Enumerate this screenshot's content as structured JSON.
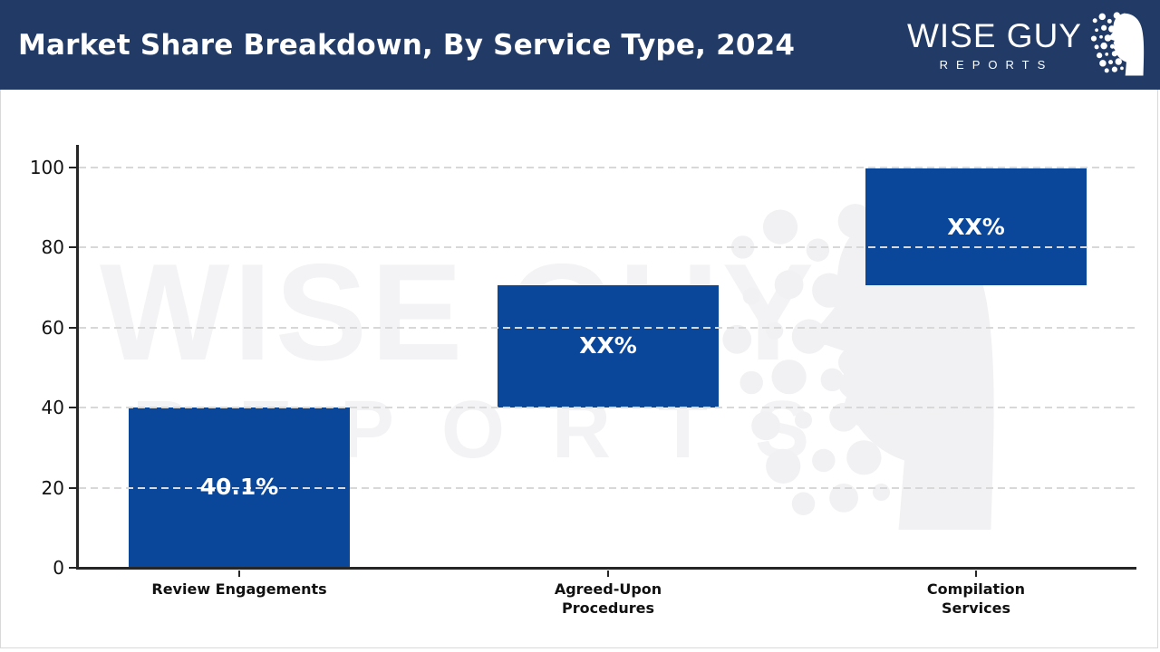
{
  "header": {
    "title": "Market Share Breakdown, By Service Type, 2024",
    "background_color": "#213a66",
    "logo": {
      "line1": "WISE GUY",
      "line2": "REPORTS",
      "face_icon": "dotted-face-profile"
    }
  },
  "watermark": {
    "line1": "WISE GUY",
    "line2": "REPORTS"
  },
  "chart_data": {
    "type": "bar",
    "variant": "stacked-step-waterfall",
    "title": "Market Share Breakdown, By Service Type, 2024",
    "categories": [
      "Review Engagements",
      "Agreed-Upon Procedures",
      "Compilation Services"
    ],
    "category_label_lines": [
      [
        "Review Engagements"
      ],
      [
        "Agreed-Upon",
        "Procedures"
      ],
      [
        "Compilation",
        "Services"
      ]
    ],
    "segments": [
      {
        "category": "Review Engagements",
        "start": 0,
        "end": 40.1,
        "value_label": "40.1%"
      },
      {
        "category": "Agreed-Upon Procedures",
        "start": 40.1,
        "end": 70.6,
        "value_label": "XX%"
      },
      {
        "category": "Compilation Services",
        "start": 70.6,
        "end": 99.7,
        "value_label": "XX%"
      }
    ],
    "xlabel": "",
    "ylabel": "",
    "ylim": [
      0,
      100
    ],
    "yticks": [
      0,
      20,
      40,
      60,
      80,
      100
    ],
    "grid": "horizontal-dashed",
    "legend": "none",
    "colors": {
      "bar": "#0a4699",
      "bar_label": "#ffffff",
      "axis": "#262626",
      "gridline": "#d8d8d8",
      "tick_label": "#111111"
    }
  }
}
